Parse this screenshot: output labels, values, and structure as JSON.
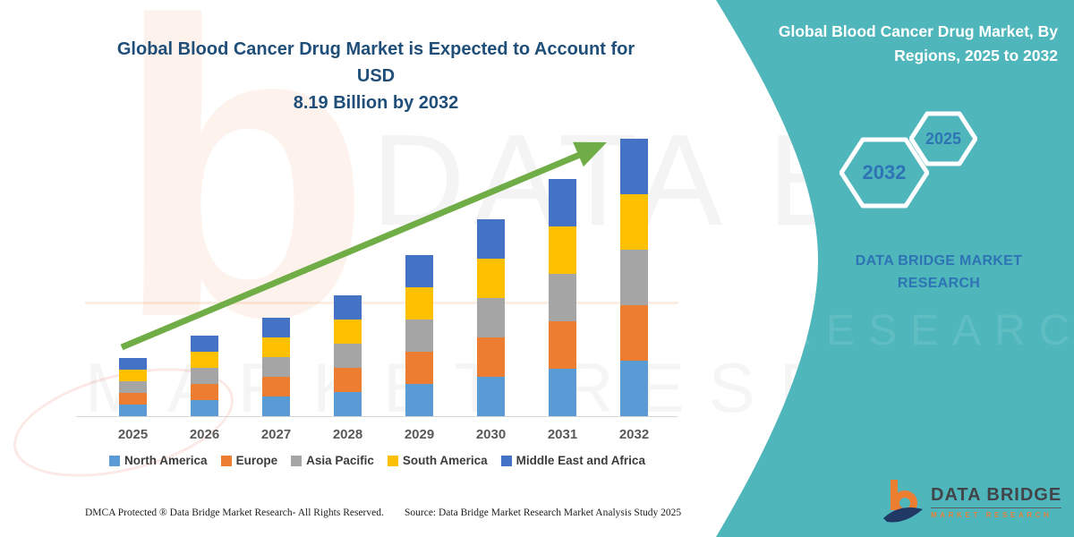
{
  "canvas": {
    "background": "#FFFFFF",
    "teal_panel_color": "#4FB6BB"
  },
  "header": {
    "main_title_line1": "Global Blood Cancer Drug Market is Expected to Account for USD",
    "main_title_line2": "8.19 Billion by 2032",
    "title_color": "#1F4E79"
  },
  "chart_data": {
    "type": "bar",
    "stacked": true,
    "title": "Global Blood Cancer Drug Market is Expected to Account for USD 8.19 Billion by 2032",
    "unit": "USD Billion",
    "categories": [
      "2025",
      "2026",
      "2027",
      "2028",
      "2029",
      "2030",
      "2031",
      "2032"
    ],
    "series": [
      {
        "name": "North America",
        "color": "#5B9BD5",
        "values": [
          0.342,
          0.464,
          0.584,
          0.706,
          0.938,
          1.17,
          1.406,
          1.638
        ]
      },
      {
        "name": "Europe",
        "color": "#ED7D31",
        "values": [
          0.342,
          0.464,
          0.584,
          0.706,
          0.938,
          1.17,
          1.406,
          1.638
        ]
      },
      {
        "name": "Asia Pacific",
        "color": "#A5A5A5",
        "values": [
          0.342,
          0.464,
          0.584,
          0.706,
          0.938,
          1.17,
          1.406,
          1.638
        ]
      },
      {
        "name": "South America",
        "color": "#FFC000",
        "values": [
          0.342,
          0.464,
          0.584,
          0.706,
          0.938,
          1.17,
          1.406,
          1.638
        ]
      },
      {
        "name": "Middle East and Africa",
        "color": "#4472C4",
        "values": [
          0.342,
          0.464,
          0.584,
          0.706,
          0.938,
          1.17,
          1.406,
          1.638
        ]
      }
    ],
    "totals_usd_billion": [
      1.71,
      2.32,
      2.92,
      3.53,
      4.69,
      5.85,
      7.03,
      8.19
    ],
    "ylim": [
      0,
      8.5
    ],
    "y_axis_visible": false,
    "gridlines": false,
    "legend_position": "bottom",
    "trend_arrow_color": "#70AD47"
  },
  "footer": {
    "dmca": "DMCA Protected ® Data Bridge Market Research-  All Rights Reserved.",
    "source": "Source: Data Bridge Market Research  Market Analysis Study 2025"
  },
  "side_panel": {
    "heading": "Global Blood Cancer Drug Market, By Regions, 2025 to 2032",
    "hexagon_years": [
      "2032",
      "2025"
    ],
    "brand_name": "DATA BRIDGE MARKET RESEARCH",
    "year_text_color": "#2E74B5"
  },
  "logo": {
    "title": "DATA BRIDGE",
    "subtitle": "MARKET RESEARCH"
  },
  "watermark": {
    "line1": "DATA BRIDGE",
    "line2": "MARKET RESEARCH",
    "letter": "b",
    "teal_word": "RESEARCH"
  }
}
